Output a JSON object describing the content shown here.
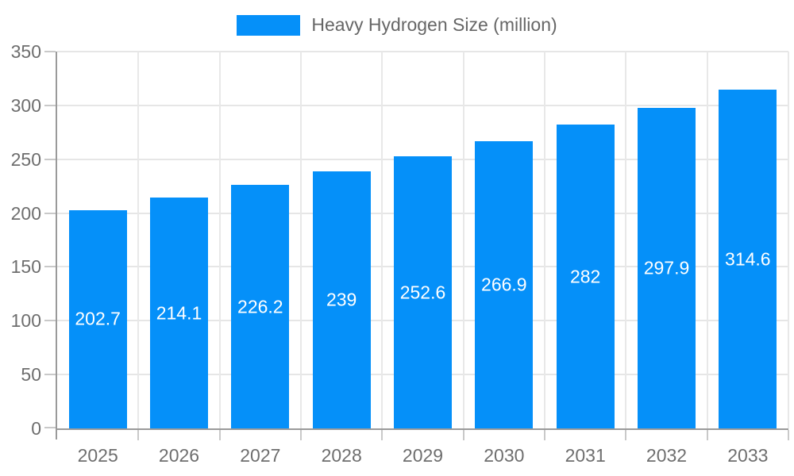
{
  "chart_data": {
    "type": "bar",
    "legend_label": "Heavy Hydrogen Size (million)",
    "categories": [
      "2025",
      "2026",
      "2027",
      "2028",
      "2029",
      "2030",
      "2031",
      "2032",
      "2033"
    ],
    "values": [
      202.7,
      214.1,
      226.2,
      239,
      252.6,
      266.9,
      282,
      297.9,
      314.6
    ],
    "value_labels": [
      "202.7",
      "214.1",
      "226.2",
      "239",
      "252.6",
      "266.9",
      "282",
      "297.9",
      "314.6"
    ],
    "xlabel": "",
    "ylabel": "",
    "ylim": [
      0,
      350
    ],
    "yticks": [
      0,
      50,
      100,
      150,
      200,
      250,
      300,
      350
    ],
    "grid": "on",
    "legend_position": "top-center",
    "bar_label_position": "inside-middle"
  },
  "colors": {
    "bar": "#0590F9",
    "bar_label_text": "#FFFFFF",
    "grid_h": "#E6E6E6",
    "grid_v": "#E8E8E8",
    "axis": "#9A9A9A",
    "tick": "#C9C9C9",
    "axis_text": "#6E6E6E",
    "legend_text": "#666666",
    "background": "#FFFFFF"
  }
}
